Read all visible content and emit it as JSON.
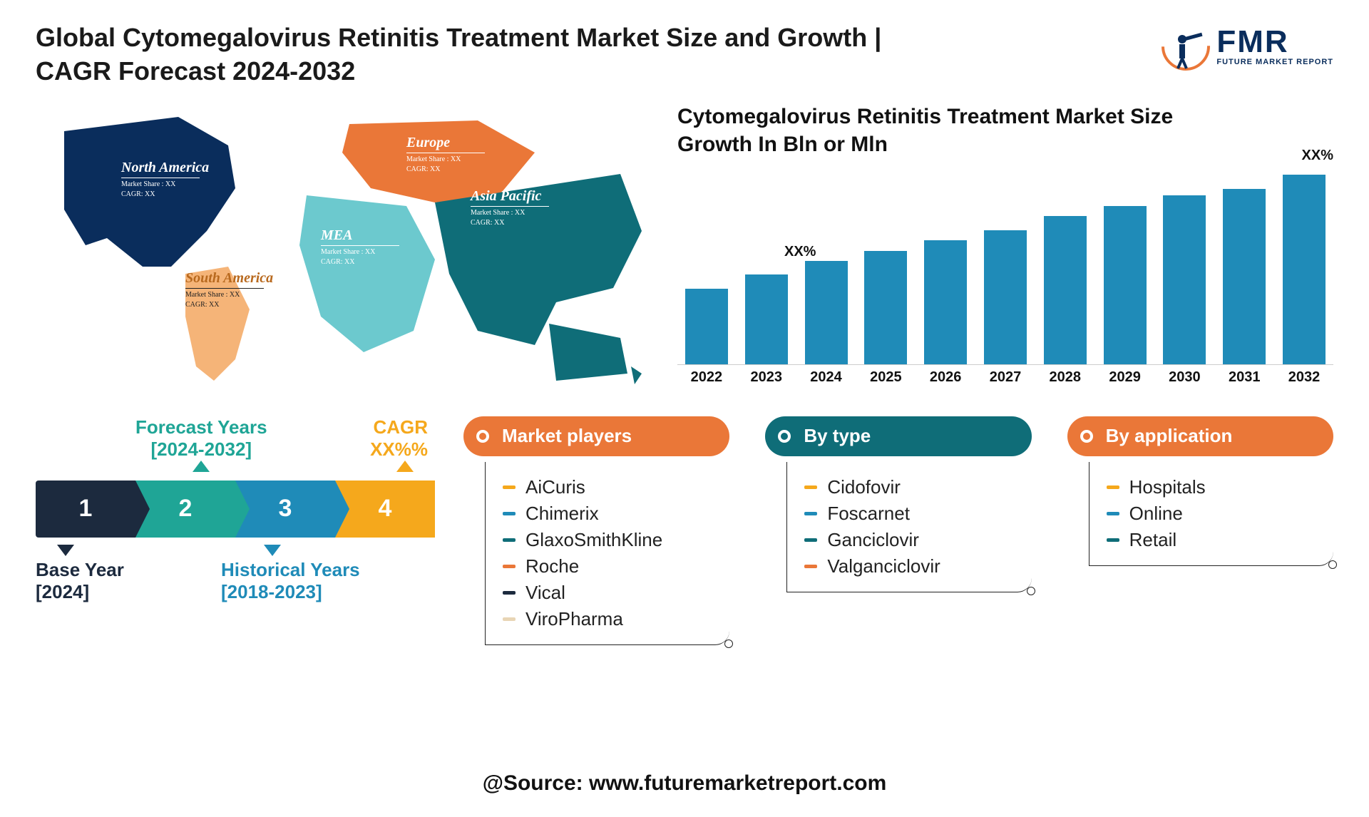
{
  "title": "Global Cytomegalovirus Retinitis Treatment Market Size and Growth | CAGR Forecast 2024-2032",
  "logo": {
    "main": "FMR",
    "sub": "FUTURE MARKET REPORT"
  },
  "map_regions": {
    "north_america": {
      "name": "North America",
      "share": "Market Share : XX",
      "cagr": "CAGR: XX",
      "color": "#0a2d5c"
    },
    "south_america": {
      "name": "South America",
      "share": "Market Share : XX",
      "cagr": "CAGR: XX",
      "color": "#f5b478"
    },
    "europe": {
      "name": "Europe",
      "share": "Market Share : XX",
      "cagr": "CAGR: XX",
      "color": "#ea7738"
    },
    "mea": {
      "name": "MEA",
      "share": "Market Share : XX",
      "cagr": "CAGR: XX",
      "color": "#6cc9ce"
    },
    "asia_pacific": {
      "name": "Asia Pacific",
      "share": "Market Share : XX",
      "cagr": "CAGR: XX",
      "color": "#0f6d78"
    }
  },
  "chart": {
    "title": "Cytomegalovirus Retinitis Treatment Market Size Growth In Bln or Mln",
    "years": [
      "2022",
      "2023",
      "2024",
      "2025",
      "2026",
      "2027",
      "2028",
      "2029",
      "2030",
      "2031",
      "2032"
    ],
    "values": [
      110,
      130,
      150,
      165,
      180,
      195,
      215,
      230,
      245,
      255,
      275
    ],
    "max": 280,
    "bar_color": "#1f8bb8",
    "annot_2024": "XX%",
    "annot_2032": "XX%"
  },
  "timeline": {
    "segments": [
      {
        "n": "1",
        "bg": "#1c2a3e",
        "arrow": "#1c2a3e"
      },
      {
        "n": "2",
        "bg": "#1fa596",
        "arrow": "#1fa596"
      },
      {
        "n": "3",
        "bg": "#1f8bb8",
        "arrow": "#1f8bb8"
      },
      {
        "n": "4",
        "bg": "#f5a81c",
        "arrow": "#f5a81c"
      }
    ],
    "forecast_label": "Forecast Years",
    "forecast_range": "[2024-2032]",
    "forecast_color": "#1fa596",
    "cagr_label": "CAGR",
    "cagr_value": "XX%%",
    "cagr_color": "#f5a81c",
    "base_label": "Base Year",
    "base_range": "[2024]",
    "base_color": "#1c2a3e",
    "hist_label": "Historical Years",
    "hist_range": "[2018-2023]",
    "hist_color": "#1f8bb8"
  },
  "segments": {
    "players": {
      "title": "Market players",
      "pill_color": "#ea7738",
      "items": [
        {
          "c": "#f5a81c",
          "t": "AiCuris"
        },
        {
          "c": "#1f8bb8",
          "t": "Chimerix"
        },
        {
          "c": "#0f6d78",
          "t": "GlaxoSmithKline"
        },
        {
          "c": "#ea7738",
          "t": "Roche"
        },
        {
          "c": "#1c2a3e",
          "t": "Vical"
        },
        {
          "c": "#e8d5b5",
          "t": "ViroPharma"
        }
      ]
    },
    "type": {
      "title": "By type",
      "pill_color": "#0f6d78",
      "items": [
        {
          "c": "#f5a81c",
          "t": "Cidofovir"
        },
        {
          "c": "#1f8bb8",
          "t": "Foscarnet"
        },
        {
          "c": "#0f6d78",
          "t": "Ganciclovir"
        },
        {
          "c": "#ea7738",
          "t": "Valganciclovir"
        }
      ]
    },
    "application": {
      "title": "By application",
      "pill_color": "#ea7738",
      "items": [
        {
          "c": "#f5a81c",
          "t": "Hospitals"
        },
        {
          "c": "#1f8bb8",
          "t": "Online"
        },
        {
          "c": "#0f6d78",
          "t": "Retail"
        }
      ]
    }
  },
  "source": "@Source: www.futuremarketreport.com"
}
